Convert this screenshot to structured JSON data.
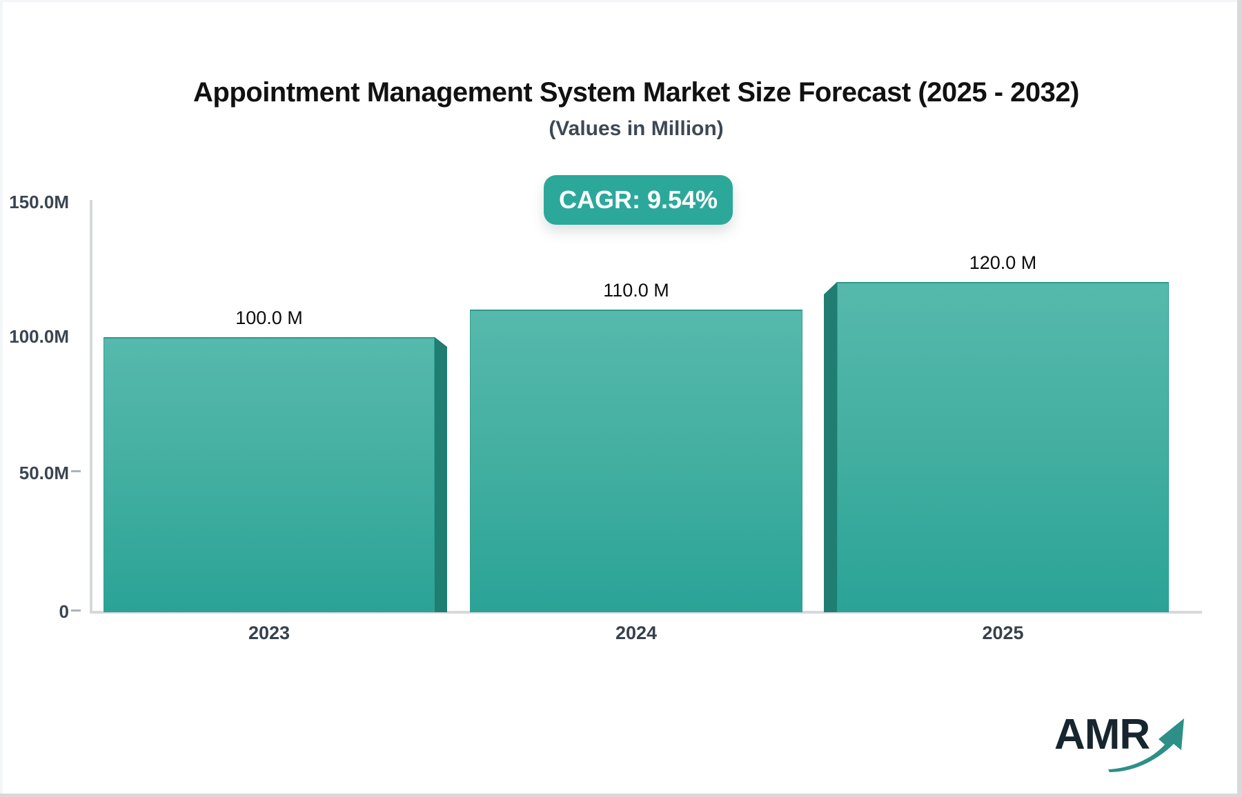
{
  "header": {
    "title": "Appointment Management System Market Size Forecast (2025 - 2032)",
    "subtitle": "(Values in Million)"
  },
  "badge": {
    "label": "CAGR: 9.54%",
    "color": "#2ca89b"
  },
  "logo": {
    "text": "AMR",
    "color": "#16252e",
    "arrow_color": "#2e8f87"
  },
  "chart_data": {
    "type": "bar",
    "title": "Appointment Management System Market Size Forecast (2025 - 2032)",
    "subtitle": "(Values in Million)",
    "unit": "Million",
    "cagr_percent": 9.54,
    "categories": [
      "2023",
      "2024",
      "2025"
    ],
    "values": [
      100.0,
      110.0,
      120.0
    ],
    "value_labels": [
      "100.0 M",
      "110.0 M",
      "120.0 M"
    ],
    "y_ticks": [
      "150.0M",
      "100.0M",
      "50.0M",
      "0"
    ],
    "ylim": [
      0,
      150
    ],
    "grid": false,
    "legend": false,
    "bar_gradient_top": "#56b9ac",
    "bar_gradient_bottom": "#2aa396",
    "bar_side_shade": "#1f7d72",
    "axis_color": "#d5d8dd"
  }
}
